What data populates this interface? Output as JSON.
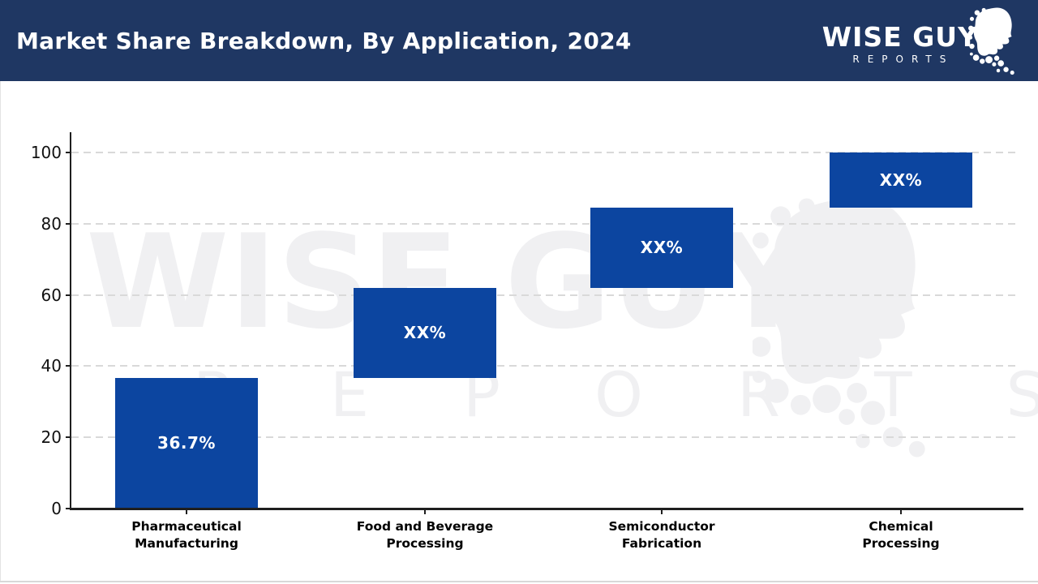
{
  "header": {
    "title": "Market Share Breakdown, By Application, 2024",
    "logo": {
      "name": "WISE GUY",
      "sub": "REPORTS"
    }
  },
  "watermark": {
    "name": "WISE GUY",
    "sub": "R E P O R T S"
  },
  "chart_data": {
    "type": "bar",
    "subtype": "waterfall",
    "title": "Market Share Breakdown, By Application, 2024",
    "categories": [
      "Pharmaceutical Manufacturing",
      "Food and Beverage Processing",
      "Semiconductor Fabrication",
      "Chemical Processing"
    ],
    "bars": [
      {
        "category": "Pharmaceutical Manufacturing",
        "start": 0,
        "end": 36.7,
        "label": "36.7%"
      },
      {
        "category": "Food and Beverage Processing",
        "start": 36.7,
        "end": 62,
        "label": "XX%"
      },
      {
        "category": "Semiconductor Fabrication",
        "start": 62,
        "end": 84.5,
        "label": "XX%"
      },
      {
        "category": "Chemical Processing",
        "start": 84.5,
        "end": 100,
        "label": "XX%"
      }
    ],
    "xlabel": "",
    "ylabel": "",
    "ylim": [
      0,
      100
    ],
    "yticks": [
      0,
      20,
      40,
      60,
      80,
      100
    ],
    "grid": "horizontal-dashed",
    "legend": "none",
    "colors": {
      "bar": "#0c45a0",
      "bar_label": "#ffffff",
      "header_bg": "#1f3763",
      "axis": "#1f1f1f",
      "gridline": "#d9d9d9",
      "watermark": "#f0f0f2"
    }
  }
}
